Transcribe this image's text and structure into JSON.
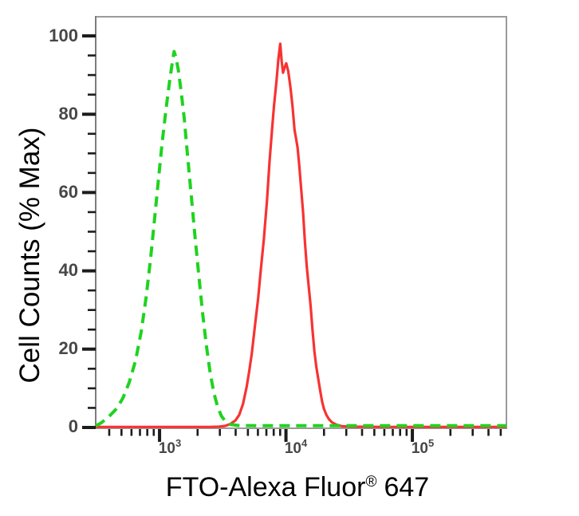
{
  "figure": {
    "background": "#ffffff",
    "title": "",
    "legend": "none"
  },
  "chart_data": {
    "type": "line",
    "subtype": "flow-cytometry-histogram-overlay",
    "title": "",
    "xlabel": "FTO-Alexa Fluor® 647",
    "xlabel_parts": {
      "main": "FTO-Alexa Fluor",
      "registered": "®",
      "suffix": "647"
    },
    "ylabel": "Cell Counts (% Max)",
    "x_scale": "log10",
    "x_log10_range": [
      2.495,
      5.744
    ],
    "ylim": [
      0,
      105
    ],
    "grid": false,
    "legend_position": "none",
    "frame_color": "#9b9b9b",
    "axis_line_color": "#7d7d7d",
    "tick_color": "#1c1c1c",
    "tick_label_color": "#474747",
    "y_major_ticks": [
      0,
      20,
      40,
      60,
      80,
      100
    ],
    "y_minor_step": 5,
    "y_tick_labels_top_to_bottom": [
      "100",
      "80",
      "60",
      "40",
      "20",
      "0"
    ],
    "x_major_ticks": [
      1000,
      10000,
      100000
    ],
    "x_tick_labels": [
      {
        "base": "10",
        "exp": "3"
      },
      {
        "base": "10",
        "exp": "4"
      },
      {
        "base": "10",
        "exp": "5"
      }
    ],
    "x_minor_ticks": [
      400,
      500,
      600,
      700,
      800,
      900,
      2000,
      3000,
      4000,
      5000,
      6000,
      7000,
      8000,
      9000,
      20000,
      30000,
      40000,
      50000,
      60000,
      70000,
      80000,
      90000,
      200000,
      300000,
      400000,
      500000
    ],
    "series": [
      {
        "name": "stained-sample-red-solid",
        "color": "#f83232",
        "line_style": "solid",
        "line_width": 3.2,
        "dash": null,
        "peak_log10x": 3.955,
        "peak_pct": 98,
        "points_log10x_pct": [
          [
            2.495,
            0.15
          ],
          [
            3.0,
            0.15
          ],
          [
            3.4,
            0.15
          ],
          [
            3.47,
            0.2
          ],
          [
            3.52,
            0.4
          ],
          [
            3.56,
            0.9
          ],
          [
            3.6,
            1.8
          ],
          [
            3.63,
            3.2
          ],
          [
            3.66,
            6.0
          ],
          [
            3.69,
            10.5
          ],
          [
            3.71,
            14.5
          ],
          [
            3.73,
            19.0
          ],
          [
            3.755,
            26.0
          ],
          [
            3.78,
            33.0
          ],
          [
            3.8,
            40.0
          ],
          [
            3.825,
            48.0
          ],
          [
            3.85,
            58.0
          ],
          [
            3.87,
            68.0
          ],
          [
            3.89,
            76.0
          ],
          [
            3.905,
            82.0
          ],
          [
            3.925,
            88.5
          ],
          [
            3.94,
            94.0
          ],
          [
            3.955,
            98.0
          ],
          [
            3.966,
            93.5
          ],
          [
            3.977,
            90.6
          ],
          [
            3.99,
            92.0
          ],
          [
            4.002,
            93.0
          ],
          [
            4.018,
            91.0
          ],
          [
            4.035,
            87.0
          ],
          [
            4.052,
            82.0
          ],
          [
            4.068,
            76.0
          ],
          [
            4.08,
            73.8
          ],
          [
            4.092,
            71.5
          ],
          [
            4.105,
            67.0
          ],
          [
            4.12,
            61.0
          ],
          [
            4.135,
            55.0
          ],
          [
            4.15,
            47.5
          ],
          [
            4.165,
            41.0
          ],
          [
            4.18,
            36.0
          ],
          [
            4.195,
            31.0
          ],
          [
            4.21,
            25.0
          ],
          [
            4.225,
            19.5
          ],
          [
            4.24,
            15.5
          ],
          [
            4.255,
            12.5
          ],
          [
            4.27,
            9.5
          ],
          [
            4.285,
            6.8
          ],
          [
            4.3,
            4.8
          ],
          [
            4.32,
            3.2
          ],
          [
            4.34,
            2.1
          ],
          [
            4.365,
            1.3
          ],
          [
            4.4,
            0.7
          ],
          [
            4.44,
            0.35
          ],
          [
            4.5,
            0.2
          ],
          [
            4.8,
            0.15
          ],
          [
            5.2,
            0.15
          ],
          [
            5.744,
            0.15
          ]
        ]
      },
      {
        "name": "negative-control-green-dashed",
        "color": "#1fd31f",
        "line_style": "dashed",
        "line_width": 4,
        "dash": [
          13,
          8
        ],
        "peak_log10x": 3.115,
        "peak_pct": 96,
        "points_log10x_pct": [
          [
            2.495,
            0.4
          ],
          [
            2.54,
            1.2
          ],
          [
            2.6,
            2.8
          ],
          [
            2.66,
            4.8
          ],
          [
            2.71,
            7.5
          ],
          [
            2.76,
            11.5
          ],
          [
            2.81,
            17.0
          ],
          [
            2.855,
            24.5
          ],
          [
            2.895,
            33.5
          ],
          [
            2.93,
            43.5
          ],
          [
            2.96,
            53.0
          ],
          [
            2.99,
            63.0
          ],
          [
            3.02,
            72.5
          ],
          [
            3.05,
            81.0
          ],
          [
            3.08,
            88.5
          ],
          [
            3.1,
            93.0
          ],
          [
            3.115,
            96.0
          ],
          [
            3.13,
            94.5
          ],
          [
            3.15,
            91.0
          ],
          [
            3.17,
            86.0
          ],
          [
            3.195,
            79.0
          ],
          [
            3.22,
            70.0
          ],
          [
            3.25,
            59.5
          ],
          [
            3.28,
            49.0
          ],
          [
            3.31,
            39.0
          ],
          [
            3.34,
            29.5
          ],
          [
            3.37,
            21.0
          ],
          [
            3.4,
            14.0
          ],
          [
            3.43,
            8.8
          ],
          [
            3.46,
            5.2
          ],
          [
            3.49,
            2.9
          ],
          [
            3.52,
            1.6
          ],
          [
            3.56,
            0.8
          ],
          [
            3.62,
            0.5
          ],
          [
            3.8,
            0.45
          ],
          [
            4.2,
            0.45
          ],
          [
            4.6,
            0.45
          ],
          [
            5.0,
            0.45
          ],
          [
            5.4,
            0.45
          ],
          [
            5.744,
            0.45
          ]
        ]
      }
    ]
  }
}
